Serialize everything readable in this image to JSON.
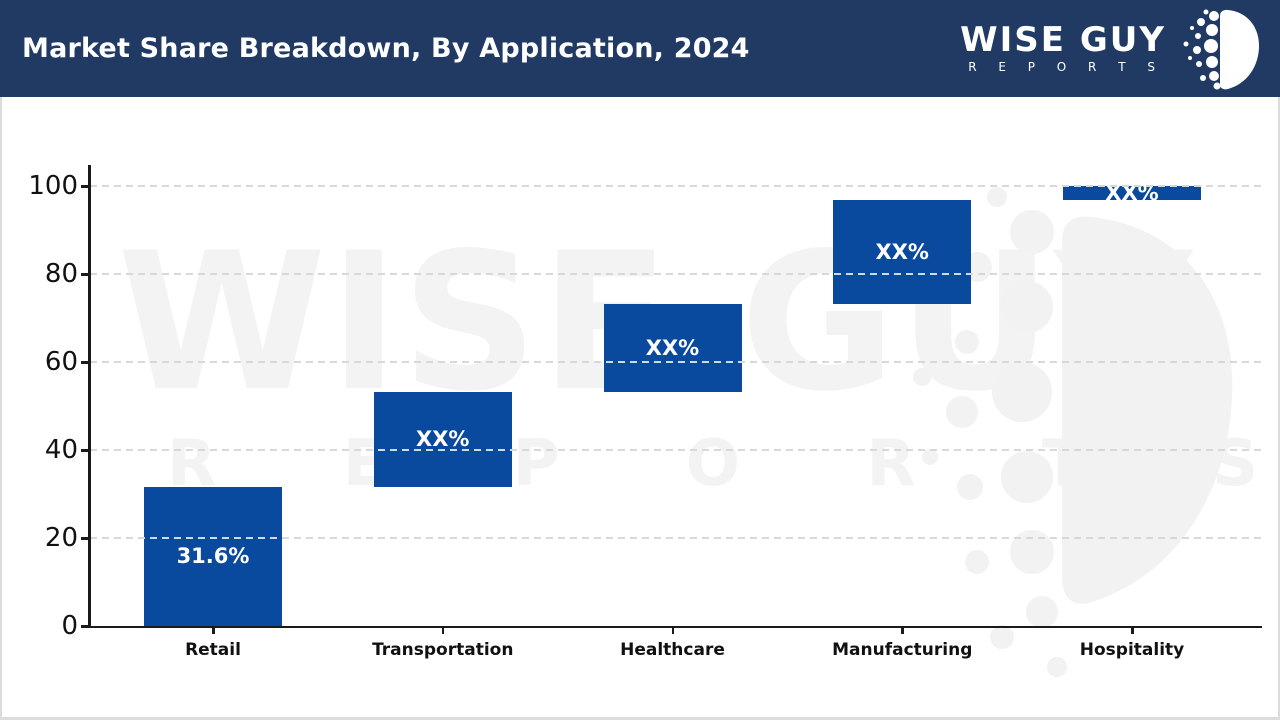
{
  "header": {
    "title": "Market Share Breakdown, By Application, 2024",
    "brand": {
      "line1": "WISE GUY",
      "line2": "R E P O R T S"
    }
  },
  "watermark": {
    "line1": "WISE GUY",
    "line2": "R E P O R T S"
  },
  "chart_data": {
    "type": "bar",
    "subtype": "waterfall",
    "title": "Market Share Breakdown, By Application, 2024",
    "categories": [
      "Retail",
      "Transportation",
      "Healthcare",
      "Manufacturing",
      "Hospitality"
    ],
    "segments": [
      {
        "category": "Retail",
        "start": 0,
        "end": 31.6,
        "label": "31.6%"
      },
      {
        "category": "Transportation",
        "start": 31.6,
        "end": 53.2,
        "label": "XX%"
      },
      {
        "category": "Healthcare",
        "start": 53.2,
        "end": 73.1,
        "label": "XX%"
      },
      {
        "category": "Manufacturing",
        "start": 73.1,
        "end": 96.8,
        "label": "XX%"
      },
      {
        "category": "Hospitality",
        "start": 96.8,
        "end": 100,
        "label": "XX%"
      }
    ],
    "y_ticks": [
      0,
      20,
      40,
      60,
      80,
      100
    ],
    "ylim": [
      0,
      105
    ],
    "xlabel": "",
    "ylabel": "",
    "grid": "horizontal-dashed-on-top",
    "legend": "none",
    "bar_color": "#0a4a9e",
    "bar_label_color": "#ffffff",
    "axis_color": "#1a1a1a",
    "grid_color": "#d8d8d8",
    "header_bg": "#203a64",
    "watermark_color": "#f3f3f3"
  }
}
